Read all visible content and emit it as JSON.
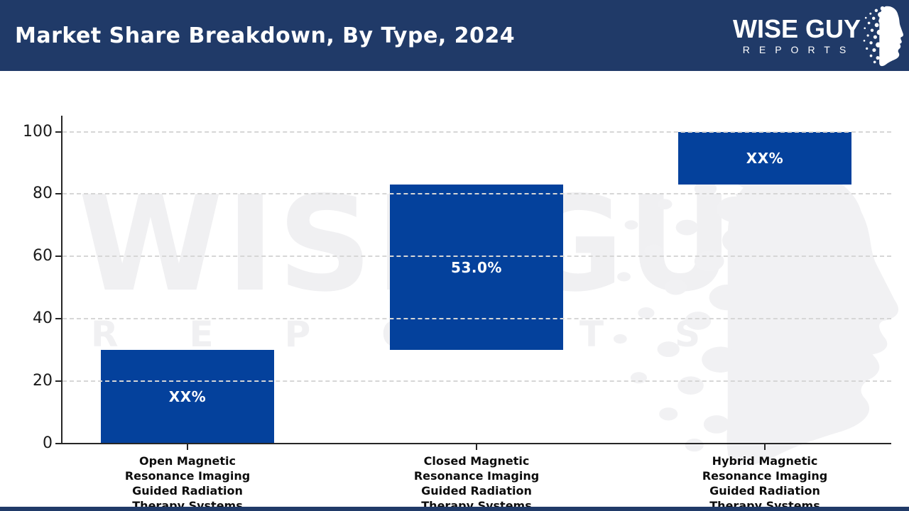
{
  "header": {
    "title": "Market Share Breakdown, By Type, 2024",
    "logo": {
      "name": "WISE GUY",
      "subtitle": "REPORTS",
      "icon": "dotted-face-profile-icon"
    }
  },
  "watermark": {
    "name": "WISE GUY",
    "subtitle": "REPORTS",
    "icon": "dotted-face-profile-icon"
  },
  "colors": {
    "header_bg": "#203a68",
    "footer_bg": "#203a68",
    "bar": "#04419c",
    "bar_label": "#ffffff",
    "grid": "#d6d6d6",
    "axis": "#262626",
    "watermark": "#f0f0f2"
  },
  "chart_data": {
    "type": "bar",
    "subtype": "waterfall (each bar begins where the previous one ends)",
    "title": "Market Share Breakdown, By Type, 2024",
    "categories": [
      "Open Magnetic Resonance Imaging Guided Radiation Therapy Systems",
      "Closed Magnetic Resonance Imaging Guided Radiation Therapy Systems",
      "Hybrid Magnetic Resonance Imaging Guided Radiation Therapy Systems"
    ],
    "category_lines": [
      [
        "Open Magnetic",
        "Resonance Imaging",
        "Guided Radiation",
        "Therapy Systems"
      ],
      [
        "Closed Magnetic",
        "Resonance Imaging",
        "Guided Radiation",
        "Therapy Systems"
      ],
      [
        "Hybrid Magnetic",
        "Resonance Imaging",
        "Guided Radiation",
        "Therapy Systems"
      ]
    ],
    "bars": [
      {
        "start": 0,
        "end": 30,
        "value_label": "XX%"
      },
      {
        "start": 30,
        "end": 83,
        "value_label": "53.0%"
      },
      {
        "start": 83,
        "end": 100,
        "value_label": "XX%"
      }
    ],
    "xlabel": "",
    "ylabel": "",
    "yticks": [
      0,
      20,
      40,
      60,
      80,
      100
    ],
    "ylim": [
      0,
      105
    ],
    "grid": {
      "axis": "y",
      "style": "dashed",
      "drawn_above_bars": true
    },
    "legend": null
  }
}
